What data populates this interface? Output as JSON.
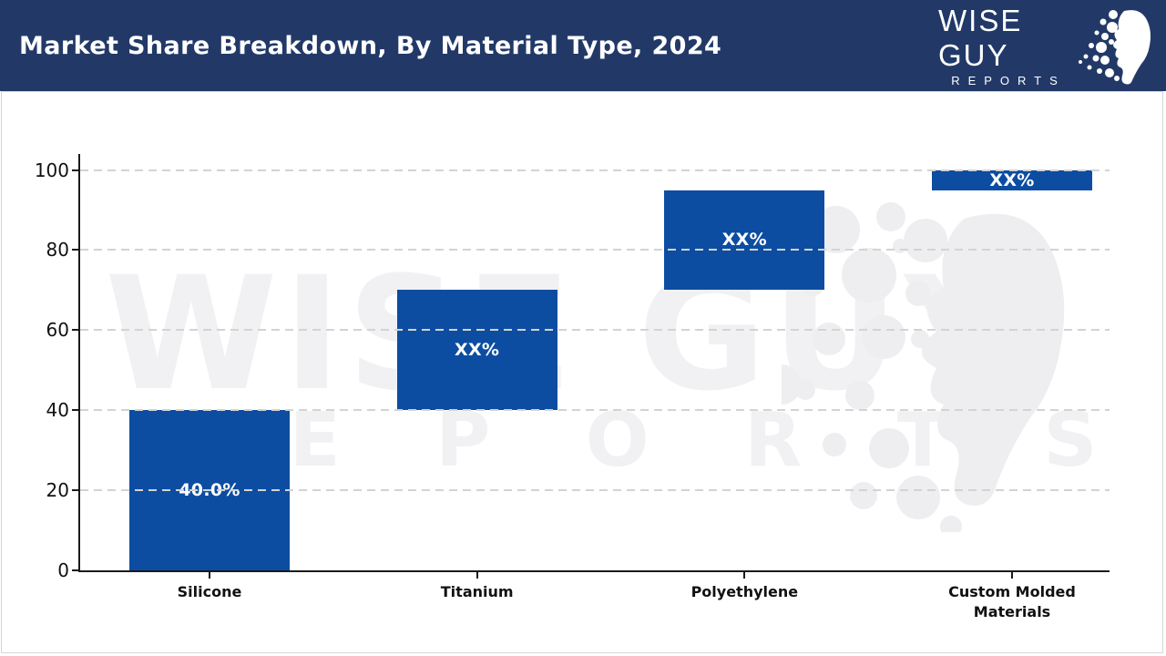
{
  "header": {
    "title": "Market Share Breakdown, By Material Type, 2024",
    "bg_color": "#223968",
    "logo": {
      "line1": "WISE GUY",
      "line2": "REPORTS"
    }
  },
  "watermark": {
    "line1": "WISE GUY",
    "line2": "R E P O R T S"
  },
  "chart_data": {
    "type": "bar",
    "subtype": "waterfall",
    "title": "Market Share Breakdown, By Material Type, 2024",
    "categories": [
      "Silicone",
      "Titanium",
      "Polyethylene",
      "Custom Molded Materials"
    ],
    "segments": [
      {
        "label": "Silicone",
        "start": 0,
        "end": 40,
        "value": 40,
        "display": "40.0%"
      },
      {
        "label": "Titanium",
        "start": 40,
        "end": 70,
        "value": 30,
        "display": "XX%"
      },
      {
        "label": "Polyethylene",
        "start": 70,
        "end": 95,
        "value": 25,
        "display": "XX%"
      },
      {
        "label": "Custom Molded Materials",
        "start": 95,
        "end": 100,
        "value": 5,
        "display": "XX%"
      }
    ],
    "y_ticks": [
      0,
      20,
      40,
      60,
      80,
      100
    ],
    "ylim": [
      0,
      104
    ],
    "xlabel": "",
    "ylabel": "",
    "grid": "horizontal-dashed",
    "legend": "none",
    "bar_color": "#0c4da2",
    "bar_label_color": "#ffffff",
    "grid_color": "#d3d3d3",
    "axis_color": "#1a1a1a"
  }
}
